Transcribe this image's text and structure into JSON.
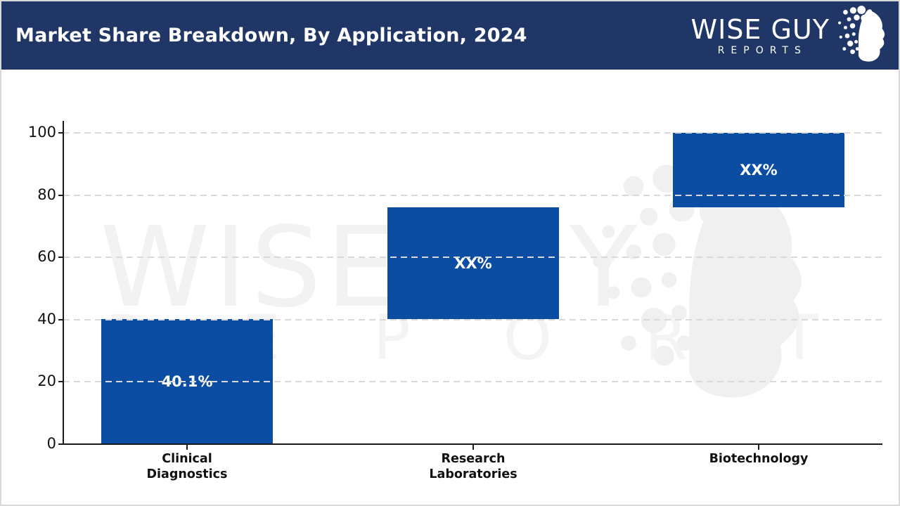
{
  "header": {
    "title": "Market Share Breakdown, By Application, 2024",
    "bg_color": "#1f3666",
    "logo": {
      "word": "WISE GUY",
      "sub": "REPORTS"
    }
  },
  "watermark": {
    "line1": "WISE G Y",
    "line2": "R E P O R T S"
  },
  "chart_data": {
    "type": "bar",
    "subtype": "floating-stacked-percentage",
    "title": "Market Share Breakdown, By Application, 2024",
    "xlabel": "",
    "ylabel": "",
    "categories": [
      "Clinical\nDiagnostics",
      "Research\nLaboratories",
      "Biotechnology"
    ],
    "segments": [
      {
        "category": "Clinical Diagnostics",
        "start": 0,
        "end": 40.1,
        "value": 40.1,
        "label": "40.1%"
      },
      {
        "category": "Research Laboratories",
        "start": 40.1,
        "end": 76.0,
        "value": 35.9,
        "label": "XX%"
      },
      {
        "category": "Biotechnology",
        "start": 76.0,
        "end": 100.0,
        "value": 24.0,
        "label": "XX%"
      }
    ],
    "yticks": [
      0,
      20,
      40,
      60,
      80,
      100
    ],
    "ylim": [
      0,
      104
    ],
    "grid": "dashed-horizontal-over-bars",
    "legend": "none",
    "bar_color": "#0b4da2",
    "grid_color": "#d9d9d9",
    "axis_color": "#1a1a1a",
    "label_color": "#ffffff"
  }
}
